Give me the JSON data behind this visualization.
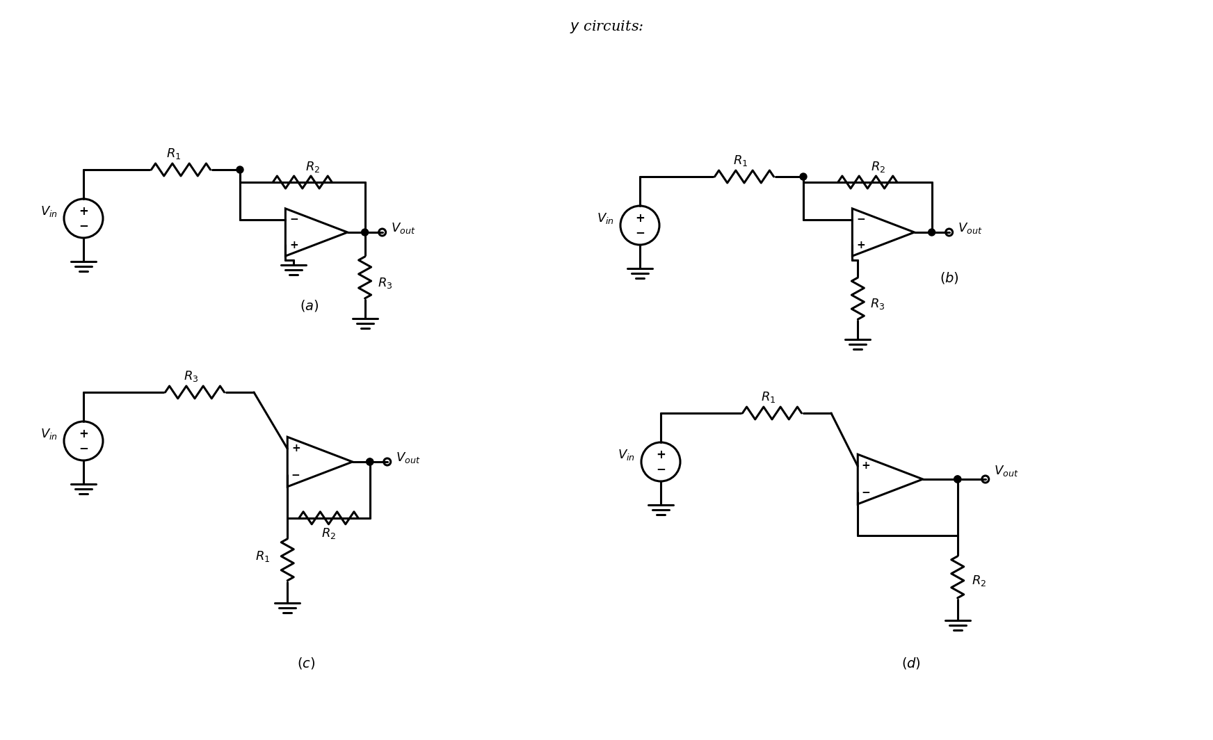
{
  "background_color": "#ffffff",
  "line_color": "#000000",
  "line_width": 2.2,
  "fig_width": 17.44,
  "fig_height": 10.64,
  "title": "y circuits:"
}
